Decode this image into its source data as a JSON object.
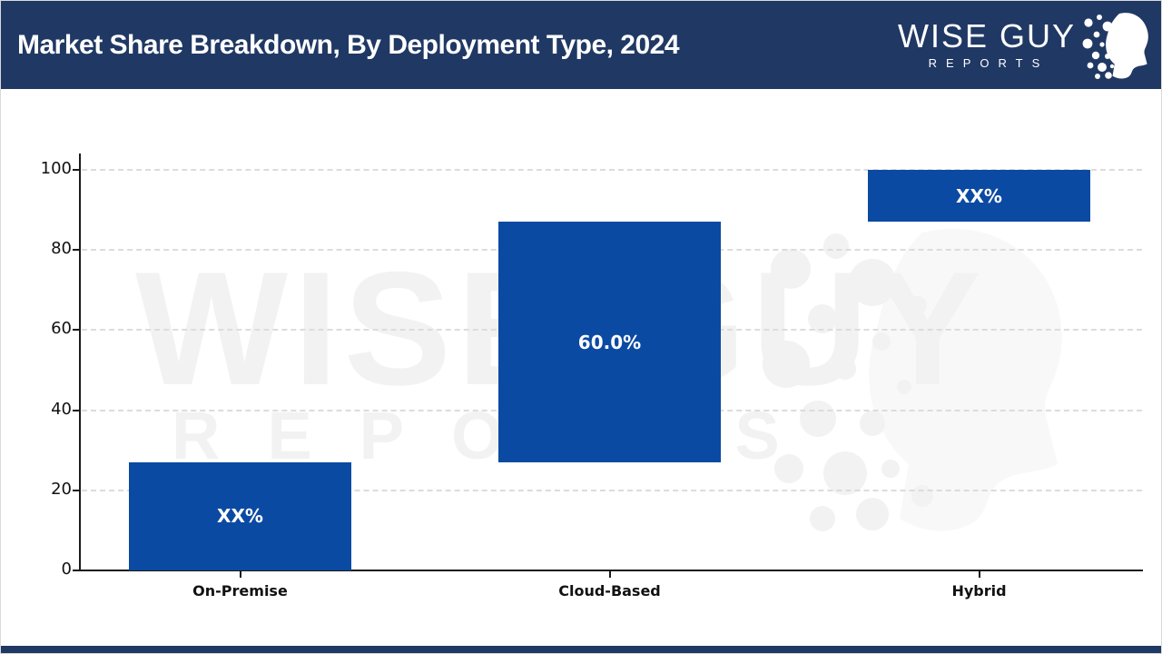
{
  "page": {
    "background": "#ffffff",
    "border_color": "#d9d9d9"
  },
  "header": {
    "bg_color": "#203864",
    "title": "Market Share Breakdown, By Deployment Type, 2024",
    "logo": {
      "line1": "WISE GUY",
      "line2": "REPORTS"
    }
  },
  "watermark": {
    "line1": "WISE GUY",
    "line2": "REPORTS"
  },
  "chart_data": {
    "type": "bar",
    "subtype": "waterfall",
    "title": "",
    "xlabel": "",
    "ylabel": "",
    "categories": [
      "On-Premise",
      "Cloud-Based",
      "Hybrid"
    ],
    "series": [
      {
        "name": "Market Share %",
        "segments": [
          {
            "category": "On-Premise",
            "start": 0,
            "end": 27,
            "label": "XX%"
          },
          {
            "category": "Cloud-Based",
            "start": 27,
            "end": 87,
            "label": "60.0%"
          },
          {
            "category": "Hybrid",
            "start": 87,
            "end": 100,
            "label": "XX%"
          }
        ]
      }
    ],
    "y_ticks": [
      0,
      20,
      40,
      60,
      80,
      100
    ],
    "ylim": [
      0,
      105
    ],
    "grid": "horizontal-dashed",
    "legend": "none",
    "bar_color": "#0b4aa2",
    "bar_label_color": "#ffffff",
    "axis_color": "#1a1a1a",
    "gridline_color": "#dcdcdc"
  }
}
